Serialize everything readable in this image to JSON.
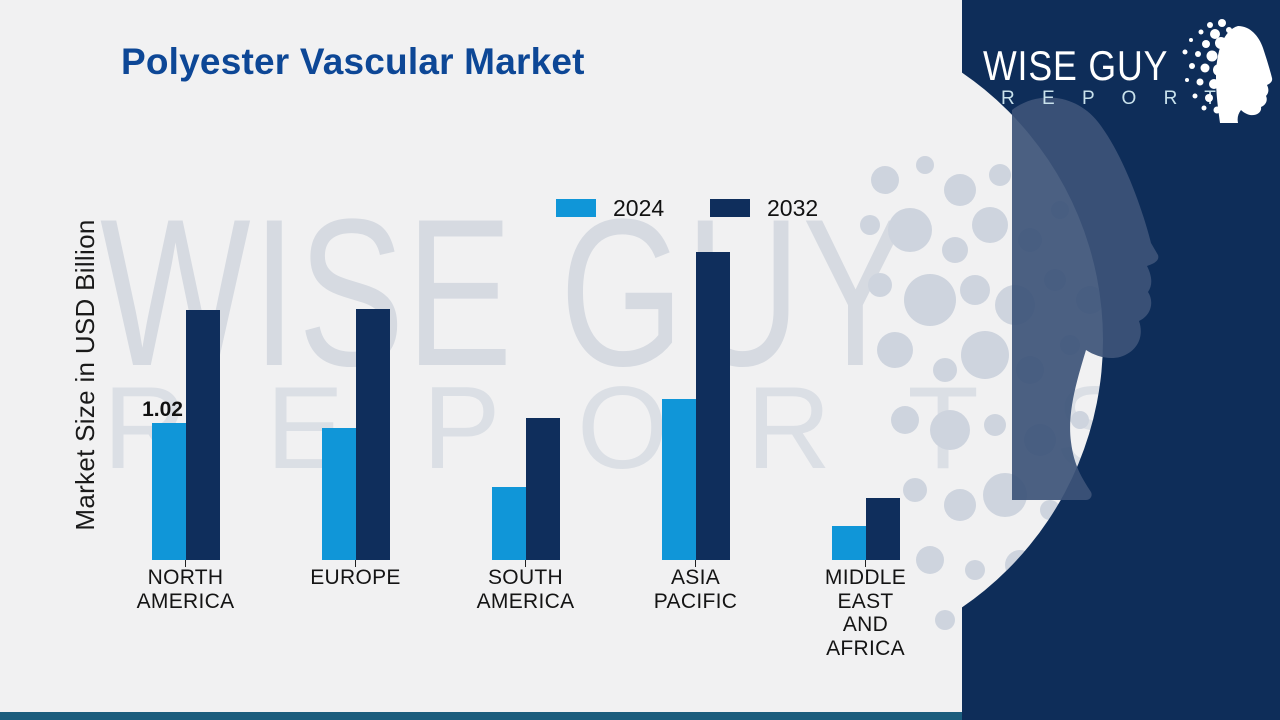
{
  "page": {
    "title": "Polyester Vascular Market",
    "background_color": "#f1f1f2"
  },
  "branding": {
    "logo_primary": "WISE GUY",
    "logo_secondary": "R E P O R T S",
    "panel_color": "#0e2d59",
    "face_silhouette_color": "#3d5478",
    "accent_bar_color": "#1b5d7d"
  },
  "watermark": {
    "line1": "WISE GUY",
    "line2": "R E P O R T S"
  },
  "chart_data": {
    "type": "bar",
    "title": "Polyester Vascular Market",
    "xlabel": "",
    "ylabel": "Market Size in USD Billion",
    "categories": [
      "NORTH\nAMERICA",
      "EUROPE",
      "SOUTH\nAMERICA",
      "ASIA\nPACIFIC",
      "MIDDLE\nEAST\nAND\nAFRICA"
    ],
    "series": [
      {
        "name": "2024",
        "color": "#1096d8",
        "values": [
          1.02,
          0.98,
          0.54,
          1.2,
          0.25
        ]
      },
      {
        "name": "2032",
        "color": "#0f2e5c",
        "values": [
          1.86,
          1.87,
          1.06,
          2.29,
          0.46
        ]
      }
    ],
    "value_labels": [
      {
        "series": "2024",
        "category_index": 0,
        "text": "1.02"
      }
    ],
    "ylim": [
      0,
      2.4
    ],
    "grid": false,
    "legend_position": "top"
  }
}
